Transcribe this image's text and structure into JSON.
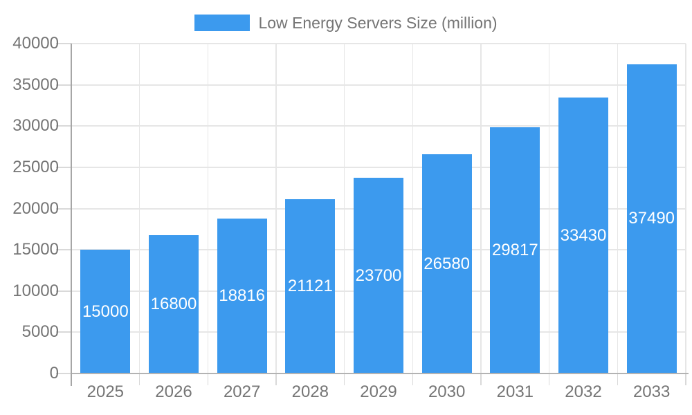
{
  "chart_data": {
    "type": "bar",
    "legend": "Low Energy Servers Size (million)",
    "legend_position": "top-center",
    "series_name": "Low Energy Servers Size (million)",
    "categories": [
      "2025",
      "2026",
      "2027",
      "2028",
      "2029",
      "2030",
      "2031",
      "2032",
      "2033"
    ],
    "values": [
      15000,
      16800,
      18816,
      21121,
      23700,
      26580,
      29817,
      33430,
      37490
    ],
    "bar_labels": [
      "15000",
      "16800",
      "18816",
      "21121",
      "23700",
      "26580",
      "29817",
      "33430",
      "37490"
    ],
    "xlabel": "",
    "ylabel": "",
    "ylim": [
      0,
      40000
    ],
    "ytick_step": 5000,
    "yticks": [
      0,
      5000,
      10000,
      15000,
      20000,
      25000,
      30000,
      35000,
      40000
    ],
    "grid": true,
    "colors": {
      "bar": "#3c9aee",
      "bar_value_text": "#ffffff",
      "axis_text": "#757575",
      "legend_text": "#757575",
      "gridline": "#e6e6e6",
      "y_axis_line": "#a6a6a6",
      "x_axis_line": "#b3b3b3",
      "tick": "#d9d9d9"
    }
  }
}
